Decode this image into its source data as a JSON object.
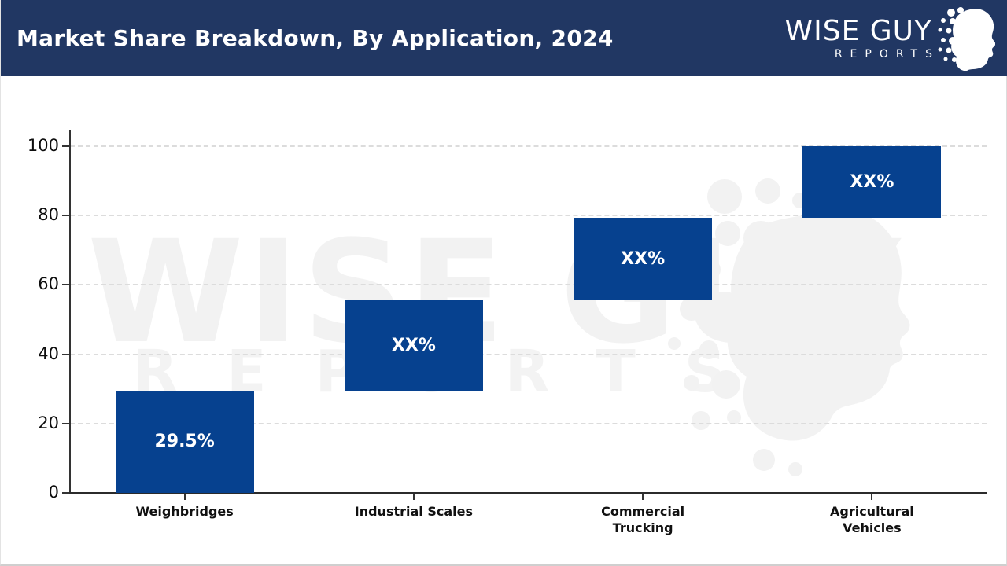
{
  "header": {
    "title": "Market Share Breakdown, By Application, 2024",
    "bg_color": "#213763",
    "logo": {
      "line1": "WISE GUY",
      "line2": "REPORTS"
    }
  },
  "watermark": {
    "line1": "WISE GUY",
    "line2": "REPORTS"
  },
  "chart_data": {
    "type": "bar",
    "subtype": "waterfall",
    "title": "Market Share Breakdown, By Application, 2024",
    "categories": [
      "Weighbridges",
      "Industrial Scales",
      "Commercial Trucking",
      "Agricultural Vehicles"
    ],
    "category_label_lines": [
      [
        "Weighbridges"
      ],
      [
        "Industrial Scales"
      ],
      [
        "Commercial",
        "Trucking"
      ],
      [
        "Agricultural",
        "Vehicles"
      ]
    ],
    "segments": [
      {
        "category": "Weighbridges",
        "start": 0,
        "end": 29.5,
        "label": "29.5%"
      },
      {
        "category": "Industrial Scales",
        "start": 29.5,
        "end": 55.5,
        "label": "XX%"
      },
      {
        "category": "Commercial Trucking",
        "start": 55.5,
        "end": 79.3,
        "label": "XX%"
      },
      {
        "category": "Agricultural Vehicles",
        "start": 79.3,
        "end": 100,
        "label": "XX%"
      }
    ],
    "xlabel": "",
    "ylabel": "",
    "ylim": [
      0,
      105
    ],
    "yticks": [
      0,
      20,
      40,
      60,
      80,
      100
    ],
    "grid": "horizontal-dashed",
    "legend": null,
    "bar_color": "#06418f",
    "bar_label_color": "#ffffff"
  }
}
